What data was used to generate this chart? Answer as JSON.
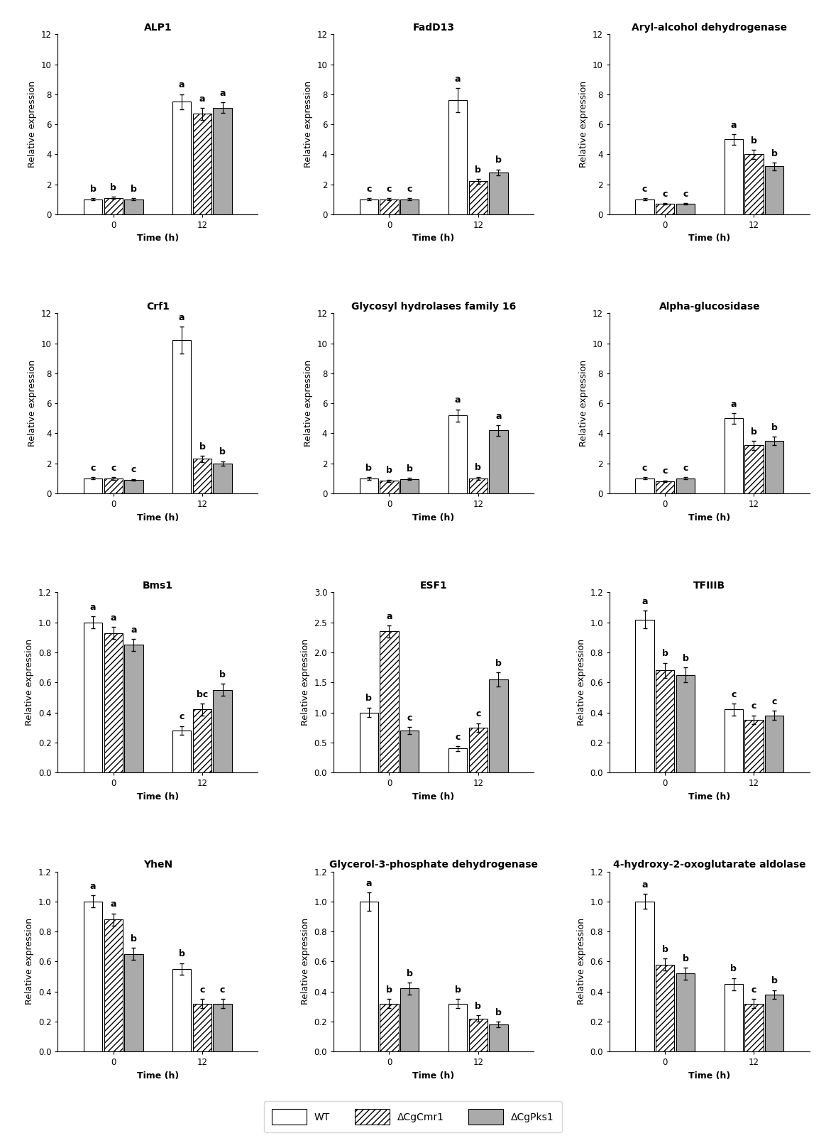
{
  "plots": [
    {
      "title": "ALP1",
      "ylim": [
        0,
        12
      ],
      "yticks": [
        0,
        2,
        4,
        6,
        8,
        10,
        12
      ],
      "values_0h": [
        1.0,
        1.1,
        1.0
      ],
      "errors_0h": [
        0.07,
        0.08,
        0.08
      ],
      "values_12h": [
        7.5,
        6.7,
        7.1
      ],
      "errors_12h": [
        0.5,
        0.4,
        0.35
      ],
      "letters_0h": [
        "b",
        "b",
        "b"
      ],
      "letters_12h": [
        "a",
        "a",
        "a"
      ]
    },
    {
      "title": "FadD13",
      "ylim": [
        0,
        12
      ],
      "yticks": [
        0,
        2,
        4,
        6,
        8,
        10,
        12
      ],
      "values_0h": [
        1.0,
        1.0,
        1.0
      ],
      "errors_0h": [
        0.07,
        0.07,
        0.08
      ],
      "values_12h": [
        7.6,
        2.2,
        2.8
      ],
      "errors_12h": [
        0.8,
        0.15,
        0.2
      ],
      "letters_0h": [
        "c",
        "c",
        "c"
      ],
      "letters_12h": [
        "a",
        "b",
        "b"
      ]
    },
    {
      "title": "Aryl-alcohol dehydrogenase",
      "ylim": [
        0,
        12
      ],
      "yticks": [
        0,
        2,
        4,
        6,
        8,
        10,
        12
      ],
      "values_0h": [
        1.0,
        0.7,
        0.7
      ],
      "errors_0h": [
        0.07,
        0.06,
        0.06
      ],
      "values_12h": [
        5.0,
        4.0,
        3.2
      ],
      "errors_12h": [
        0.35,
        0.3,
        0.25
      ],
      "letters_0h": [
        "c",
        "c",
        "c"
      ],
      "letters_12h": [
        "a",
        "b",
        "b"
      ]
    },
    {
      "title": "Crf1",
      "ylim": [
        0,
        12
      ],
      "yticks": [
        0,
        2,
        4,
        6,
        8,
        10,
        12
      ],
      "values_0h": [
        1.0,
        1.0,
        0.9
      ],
      "errors_0h": [
        0.07,
        0.08,
        0.07
      ],
      "values_12h": [
        10.2,
        2.3,
        2.0
      ],
      "errors_12h": [
        0.9,
        0.2,
        0.15
      ],
      "letters_0h": [
        "c",
        "c",
        "c"
      ],
      "letters_12h": [
        "a",
        "b",
        "b"
      ]
    },
    {
      "title": "Glycosyl hydrolases family 16",
      "ylim": [
        0,
        12
      ],
      "yticks": [
        0,
        2,
        4,
        6,
        8,
        10,
        12
      ],
      "values_0h": [
        1.0,
        0.85,
        0.95
      ],
      "errors_0h": [
        0.08,
        0.07,
        0.07
      ],
      "values_12h": [
        5.2,
        1.0,
        4.2
      ],
      "errors_12h": [
        0.4,
        0.1,
        0.35
      ],
      "letters_0h": [
        "b",
        "b",
        "b"
      ],
      "letters_12h": [
        "a",
        "b",
        "a"
      ]
    },
    {
      "title": "Alpha-glucosidase",
      "ylim": [
        0,
        12
      ],
      "yticks": [
        0,
        2,
        4,
        6,
        8,
        10,
        12
      ],
      "values_0h": [
        1.0,
        0.8,
        1.0
      ],
      "errors_0h": [
        0.07,
        0.06,
        0.07
      ],
      "values_12h": [
        5.0,
        3.2,
        3.5
      ],
      "errors_12h": [
        0.35,
        0.3,
        0.28
      ],
      "letters_0h": [
        "c",
        "c",
        "c"
      ],
      "letters_12h": [
        "a",
        "b",
        "b"
      ]
    },
    {
      "title": "Bms1",
      "ylim": [
        0,
        1.2
      ],
      "yticks": [
        0,
        0.2,
        0.4,
        0.6,
        0.8,
        1.0,
        1.2
      ],
      "values_0h": [
        1.0,
        0.93,
        0.85
      ],
      "errors_0h": [
        0.04,
        0.04,
        0.04
      ],
      "values_12h": [
        0.28,
        0.42,
        0.55
      ],
      "errors_12h": [
        0.03,
        0.04,
        0.04
      ],
      "letters_0h": [
        "a",
        "a",
        "a"
      ],
      "letters_12h": [
        "c",
        "bc",
        "b"
      ]
    },
    {
      "title": "ESF1",
      "ylim": [
        0,
        3
      ],
      "yticks": [
        0,
        0.5,
        1.0,
        1.5,
        2.0,
        2.5,
        3.0
      ],
      "values_0h": [
        1.0,
        2.35,
        0.7
      ],
      "errors_0h": [
        0.08,
        0.1,
        0.06
      ],
      "values_12h": [
        0.4,
        0.75,
        1.55
      ],
      "errors_12h": [
        0.04,
        0.07,
        0.12
      ],
      "letters_0h": [
        "b",
        "a",
        "c"
      ],
      "letters_12h": [
        "c",
        "c",
        "b"
      ]
    },
    {
      "title": "TFIIIB",
      "ylim": [
        0,
        1.2
      ],
      "yticks": [
        0,
        0.2,
        0.4,
        0.6,
        0.8,
        1.0,
        1.2
      ],
      "values_0h": [
        1.02,
        0.68,
        0.65
      ],
      "errors_0h": [
        0.06,
        0.05,
        0.05
      ],
      "values_12h": [
        0.42,
        0.35,
        0.38
      ],
      "errors_12h": [
        0.04,
        0.03,
        0.03
      ],
      "letters_0h": [
        "a",
        "b",
        "b"
      ],
      "letters_12h": [
        "c",
        "c",
        "c"
      ]
    },
    {
      "title": "YheN",
      "ylim": [
        0,
        1.2
      ],
      "yticks": [
        0,
        0.2,
        0.4,
        0.6,
        0.8,
        1.0,
        1.2
      ],
      "values_0h": [
        1.0,
        0.88,
        0.65
      ],
      "errors_0h": [
        0.04,
        0.04,
        0.04
      ],
      "values_12h": [
        0.55,
        0.32,
        0.32
      ],
      "errors_12h": [
        0.04,
        0.03,
        0.03
      ],
      "letters_0h": [
        "a",
        "a",
        "b"
      ],
      "letters_12h": [
        "b",
        "c",
        "c"
      ]
    },
    {
      "title": "Glycerol-3-phosphate dehydrogenase",
      "ylim": [
        0,
        1.2
      ],
      "yticks": [
        0,
        0.2,
        0.4,
        0.6,
        0.8,
        1.0,
        1.2
      ],
      "values_0h": [
        1.0,
        0.32,
        0.42
      ],
      "errors_0h": [
        0.06,
        0.03,
        0.04
      ],
      "values_12h": [
        0.32,
        0.22,
        0.18
      ],
      "errors_12h": [
        0.03,
        0.02,
        0.02
      ],
      "letters_0h": [
        "a",
        "b",
        "b"
      ],
      "letters_12h": [
        "b",
        "b",
        "b"
      ]
    },
    {
      "title": "4-hydroxy-2-oxoglutarate aldolase",
      "ylim": [
        0,
        1.2
      ],
      "yticks": [
        0,
        0.2,
        0.4,
        0.6,
        0.8,
        1.0,
        1.2
      ],
      "values_0h": [
        1.0,
        0.58,
        0.52
      ],
      "errors_0h": [
        0.05,
        0.04,
        0.04
      ],
      "values_12h": [
        0.45,
        0.32,
        0.38
      ],
      "errors_12h": [
        0.04,
        0.03,
        0.03
      ],
      "letters_0h": [
        "a",
        "b",
        "b"
      ],
      "letters_12h": [
        "b",
        "c",
        "b"
      ]
    }
  ],
  "bar_colors": [
    "white",
    "white",
    "#aaaaaa"
  ],
  "bar_hatches": [
    null,
    "////",
    null
  ],
  "bar_edgecolors": [
    "black",
    "black",
    "black"
  ],
  "legend_labels": [
    "WT",
    "ΔCgCmr1",
    "ΔCgPks1"
  ],
  "xlabel": "Time (h)",
  "ylabel": "Relative expression",
  "time_labels": [
    "0",
    "12"
  ],
  "letter_fontsize": 9,
  "title_fontsize": 10,
  "axis_fontsize": 9,
  "tick_fontsize": 8.5
}
